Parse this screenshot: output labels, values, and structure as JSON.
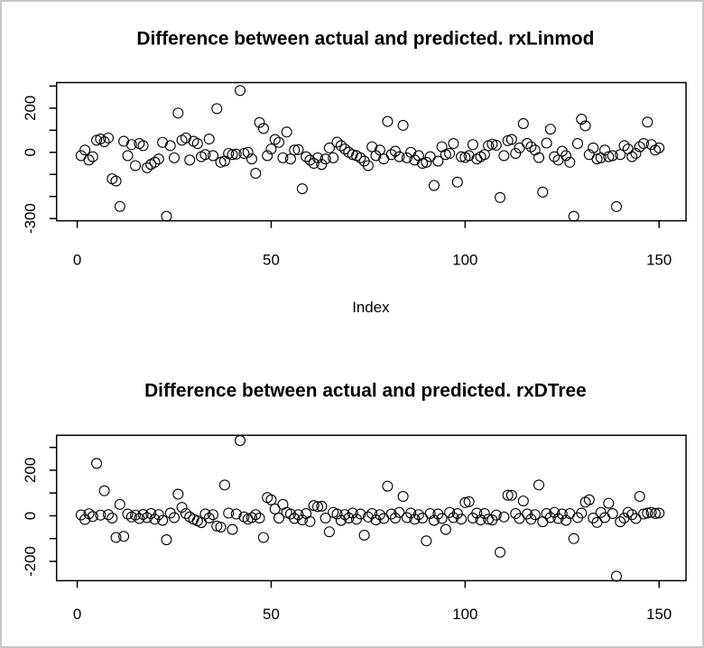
{
  "window": {
    "background": "#ffffff",
    "border_color": "#c6c6c6",
    "point_color": "#000000",
    "axis_color": "#000000"
  },
  "chart_data": [
    {
      "type": "scatter",
      "title": "Difference between actual and predicted. rxLinmod",
      "xlabel": "Index",
      "ylabel": "",
      "marker": "open-circle",
      "grid": false,
      "xlim": [
        -5,
        157
      ],
      "ylim": [
        -315,
        305
      ],
      "x_ticks": [
        0,
        50,
        100,
        150
      ],
      "y_ticks": [
        300,
        200,
        100,
        0,
        -100,
        -200,
        -300
      ],
      "y_tick_labels_shown": [
        200,
        0,
        -300
      ],
      "x_is_index_from_1": true,
      "y": [
        -15,
        10,
        -35,
        -20,
        55,
        60,
        48,
        65,
        -120,
        -130,
        -245,
        50,
        -15,
        35,
        -60,
        40,
        30,
        -70,
        -55,
        -45,
        -30,
        45,
        -290,
        30,
        -25,
        178,
        55,
        65,
        -35,
        50,
        40,
        -20,
        -10,
        60,
        -15,
        198,
        -45,
        -40,
        -5,
        -10,
        -8,
        280,
        -5,
        0,
        -30,
        -95,
        135,
        108,
        -15,
        15,
        58,
        45,
        -25,
        92,
        -30,
        10,
        12,
        -165,
        -20,
        -35,
        -50,
        -25,
        -55,
        -30,
        20,
        -25,
        46,
        30,
        15,
        0,
        -10,
        -15,
        -25,
        -40,
        -60,
        25,
        -15,
        10,
        -30,
        140,
        -10,
        5,
        -20,
        122,
        -25,
        0,
        -35,
        -15,
        -50,
        -45,
        -20,
        -150,
        -40,
        25,
        -10,
        -5,
        40,
        -135,
        -20,
        -23,
        -15,
        35,
        -30,
        -20,
        -10,
        30,
        37,
        32,
        -205,
        -15,
        53,
        58,
        -5,
        20,
        130,
        40,
        25,
        10,
        -24,
        -180,
        42,
        105,
        -20,
        -35,
        5,
        -15,
        -45,
        -290,
        40,
        150,
        120,
        -10,
        20,
        -30,
        -25,
        10,
        -20,
        -15,
        -246,
        -10,
        30,
        15,
        -20,
        -5,
        25,
        40,
        137,
        35,
        10,
        20
      ]
    },
    {
      "type": "scatter",
      "title": "Difference between actual and predicted. rxDTree",
      "xlabel": "",
      "ylabel": "",
      "marker": "open-circle",
      "grid": false,
      "xlim": [
        -5,
        157
      ],
      "ylim": [
        -290,
        352
      ],
      "x_ticks": [
        0,
        50,
        100,
        150
      ],
      "y_ticks": [
        300,
        200,
        100,
        0,
        -100,
        -200
      ],
      "y_tick_labels_shown": [
        200,
        0,
        -200
      ],
      "x_is_index_from_1": true,
      "y": [
        4,
        -16,
        9,
        -3,
        230,
        3,
        110,
        5,
        -10,
        -95,
        50,
        -90,
        8,
        -5,
        3,
        -12,
        6,
        -8,
        10,
        -15,
        5,
        -20,
        -105,
        12,
        -8,
        95,
        37,
        10,
        -5,
        -15,
        -22,
        -30,
        8,
        -10,
        5,
        -45,
        -50,
        135,
        12,
        -60,
        8,
        330,
        -5,
        -15,
        -8,
        5,
        -10,
        -95,
        80,
        70,
        30,
        -10,
        50,
        15,
        8,
        -12,
        5,
        -18,
        10,
        -25,
        45,
        40,
        42,
        -10,
        -70,
        15,
        8,
        -20,
        5,
        -10,
        12,
        -15,
        8,
        -85,
        -5,
        10,
        -18,
        5,
        -12,
        130,
        8,
        -10,
        15,
        85,
        -8,
        12,
        -15,
        5,
        -10,
        -110,
        10,
        -20,
        8,
        -12,
        -60,
        15,
        -8,
        10,
        -15,
        58,
        62,
        -10,
        12,
        -18,
        10,
        -15,
        -18,
        3,
        -160,
        -5,
        90,
        90,
        10,
        -12,
        65,
        8,
        -15,
        5,
        135,
        -26,
        10,
        -8,
        15,
        -12,
        8,
        -20,
        10,
        -100,
        -8,
        12,
        60,
        70,
        -10,
        -29,
        15,
        -8,
        55,
        10,
        -265,
        -26,
        -10,
        15,
        5,
        -12,
        85,
        8,
        12,
        15,
        10,
        12
      ]
    }
  ]
}
